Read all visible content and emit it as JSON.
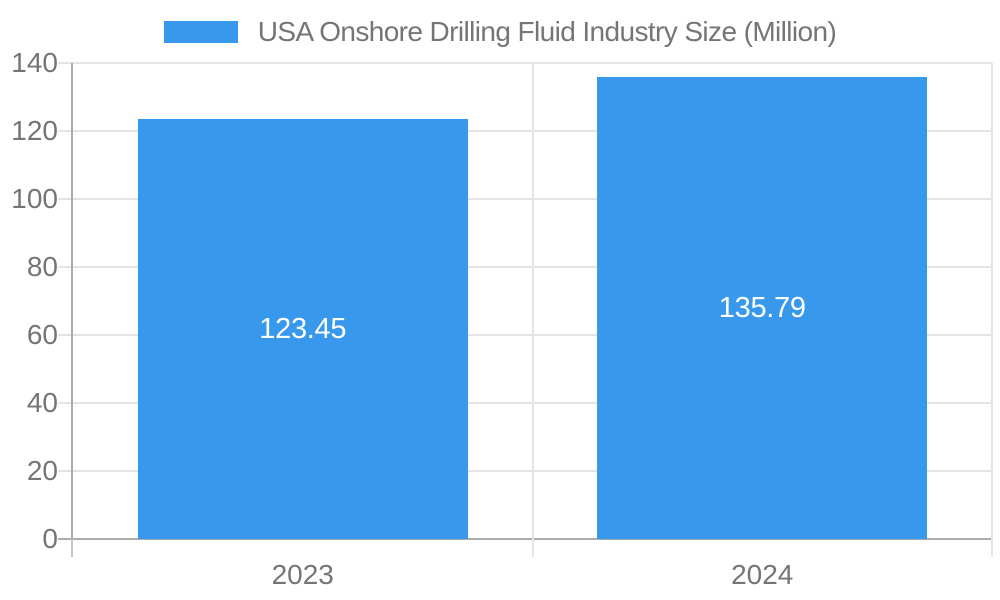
{
  "chart_data": {
    "type": "bar",
    "title": "USA Onshore Drilling Fluid Industry Size (Million)",
    "categories": [
      "2023",
      "2024"
    ],
    "series": [
      {
        "name": "USA Onshore Drilling Fluid Industry Size (Million)",
        "values": [
          123.45,
          135.79
        ],
        "value_labels": [
          "123.45",
          "135.79"
        ]
      }
    ],
    "xlabel": "",
    "ylabel": "",
    "ylim": [
      0,
      140
    ],
    "yticks": [
      0,
      20,
      40,
      60,
      80,
      100,
      120,
      140
    ],
    "grid": true,
    "legend_position": "top",
    "colors": {
      "bar": "#3898EC",
      "grid_line": "#e4e4e4",
      "axis_line": "#ababab",
      "minor_tick": "#c6c6c6",
      "tick_label": "#757575",
      "value_label": "#ffffff",
      "background": "#ffffff"
    }
  }
}
